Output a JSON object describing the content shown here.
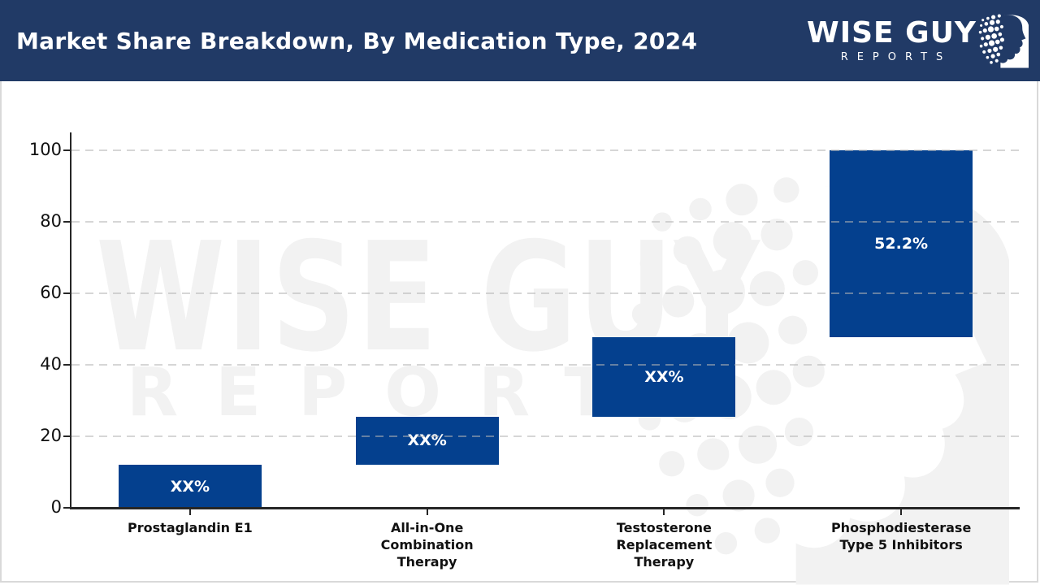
{
  "header": {
    "title": "Market Share Breakdown, By Medication Type, 2024",
    "logo": {
      "line1": "WISE GUY",
      "line2": "REPORTS"
    }
  },
  "watermark": {
    "line1": "WISE GUY",
    "line2": "REPORTS"
  },
  "colors": {
    "header_bg": "#213a66",
    "bar": "#04408e",
    "bar_label": "#ffffff",
    "grid": "#d9d9d9",
    "axis": "#262626",
    "watermark": "#f2f2f2"
  },
  "chart_data": {
    "type": "bar",
    "subtype": "floating-segment-waterfall",
    "title": "Market Share Breakdown, By Medication Type, 2024",
    "xlabel": "",
    "ylabel": "",
    "ylim": [
      0,
      105
    ],
    "y_ticks": [
      0,
      20,
      40,
      60,
      80,
      100
    ],
    "grid": "horizontal-dashed",
    "legend": "none",
    "bar_color": "#04408e",
    "categories": [
      "Prostaglandin E1",
      "All-in-One Combination Therapy",
      "Testosterone Replacement Therapy",
      "Phosphodiesterase Type 5 Inhibitors"
    ],
    "bars": [
      {
        "category": "Prostaglandin E1",
        "category_label": "Prostaglandin E1",
        "start": 0,
        "end": 12,
        "label": "XX%"
      },
      {
        "category": "All-in-One Combination Therapy",
        "category_label": "All-in-One\nCombination\nTherapy",
        "start": 12,
        "end": 25.5,
        "label": "XX%"
      },
      {
        "category": "Testosterone Replacement Therapy",
        "category_label": "Testosterone\nReplacement\nTherapy",
        "start": 25.5,
        "end": 47.8,
        "label": "XX%"
      },
      {
        "category": "Phosphodiesterase Type 5 Inhibitors",
        "category_label": "Phosphodiesterase\nType 5 Inhibitors",
        "start": 47.8,
        "end": 100,
        "label": "52.2%"
      }
    ]
  }
}
